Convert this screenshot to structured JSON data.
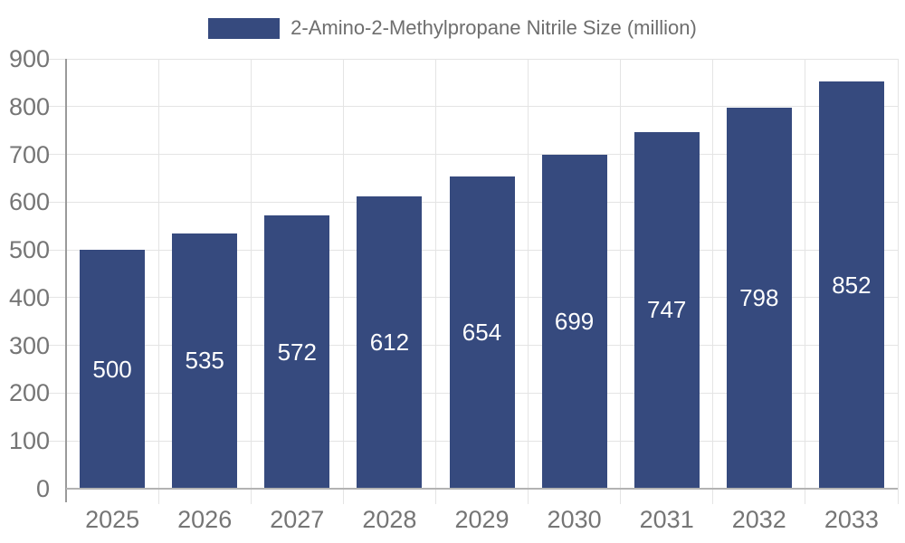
{
  "legend": {
    "label": "2-Amino-2-Methylpropane Nitrile Size (million)"
  },
  "chart_data": {
    "type": "bar",
    "title": "",
    "categories": [
      "2025",
      "2026",
      "2027",
      "2028",
      "2029",
      "2030",
      "2031",
      "2032",
      "2033"
    ],
    "series": [
      {
        "name": "2-Amino-2-Methylpropane Nitrile Size (million)",
        "values": [
          500,
          535,
          572,
          612,
          654,
          699,
          747,
          798,
          852
        ]
      }
    ],
    "xlabel": "",
    "ylabel": "",
    "ylim": [
      0,
      900
    ],
    "yticks": [
      0,
      100,
      200,
      300,
      400,
      500,
      600,
      700,
      800,
      900
    ],
    "grid": true,
    "legend_position": "top",
    "value_labels": "centered-inside-bars",
    "colors": {
      "bar": "#364A7E",
      "value_label": "#FFFFFF",
      "axis_text": "#757575",
      "legend_text": "#6E6E6E",
      "grid": "#E4E4E4",
      "y_axis_line": "#9A9A9A",
      "x_axis_line": "#B3B3B3"
    }
  }
}
